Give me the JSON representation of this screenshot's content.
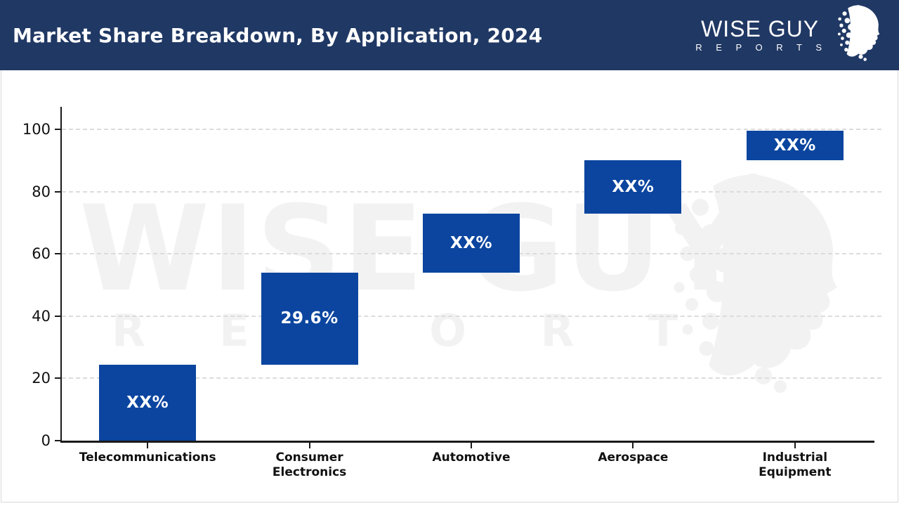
{
  "header": {
    "title": "Market Share Breakdown, By Application, 2024",
    "logo": {
      "line1": "WISE GUY",
      "line2": "R E P O R T S"
    }
  },
  "watermark": {
    "line1": "WISE GUY",
    "line2": "R E P O R T S"
  },
  "colors": {
    "header_bg": "#203864",
    "bar": "#0b459f",
    "bar_label": "#ffffff",
    "grid": "#dcdcdc",
    "axis": "#1a1a1a",
    "watermark": "#f2f2f2",
    "card_border": "#d9d9d9"
  },
  "chart_data": {
    "type": "bar",
    "subtype": "waterfall",
    "title": "Market Share Breakdown, By Application, 2024",
    "categories": [
      "Telecommunications",
      "Consumer\nElectronics",
      "Automotive",
      "Aerospace",
      "Industrial\nEquipment"
    ],
    "segments": [
      {
        "category": "Telecommunications",
        "start": 0,
        "end": 24.4,
        "label": "XX%"
      },
      {
        "category": "Consumer Electronics",
        "start": 24.4,
        "end": 54.0,
        "label": "29.6%"
      },
      {
        "category": "Automotive",
        "start": 54.0,
        "end": 73.0,
        "label": "XX%"
      },
      {
        "category": "Aerospace",
        "start": 73.0,
        "end": 90.0,
        "label": "XX%"
      },
      {
        "category": "Industrial Equipment",
        "start": 90.0,
        "end": 99.5,
        "label": "XX%"
      }
    ],
    "y_ticks": [
      0,
      20,
      40,
      60,
      80,
      100
    ],
    "ylim": [
      0,
      105
    ],
    "xlabel": "",
    "ylabel": "",
    "grid": "dashed-horizontal",
    "legend": "none"
  }
}
